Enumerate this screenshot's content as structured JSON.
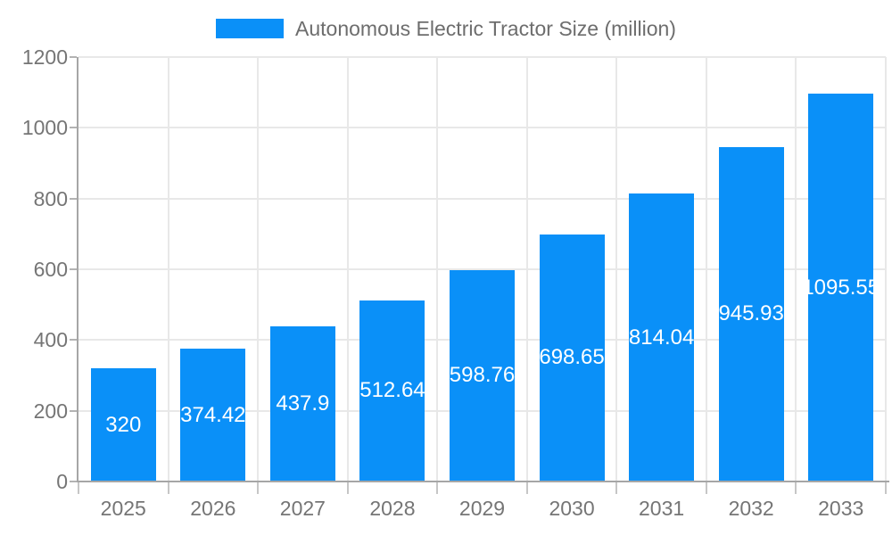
{
  "chart_data": {
    "type": "bar",
    "title": "Autonomous Electric Tractor Size (million)",
    "categories": [
      "2025",
      "2026",
      "2027",
      "2028",
      "2029",
      "2030",
      "2031",
      "2032",
      "2033"
    ],
    "series": [
      {
        "name": "Autonomous Electric Tractor Size (million)",
        "values": [
          320,
          374.42,
          437.9,
          512.64,
          598.76,
          698.65,
          814.04,
          945.93,
          1095.55
        ],
        "labels": [
          "320",
          "374.42",
          "437.9",
          "512.64",
          "598.76",
          "698.65",
          "814.04",
          "945.93",
          "1095.55"
        ]
      }
    ],
    "xlabel": "",
    "ylabel": "",
    "ylim": [
      0,
      1200
    ],
    "yticks": [
      0,
      200,
      400,
      600,
      800,
      1000,
      1200
    ],
    "grid": true,
    "legend_position": "top",
    "colors": {
      "bar": "#0a90f8",
      "bar_label_text": "#ffffff",
      "axis_line": "#a6a6a6",
      "gridline": "#e8e8e8",
      "tick_label": "#757575",
      "legend_text": "#6d6d6d",
      "background": "#ffffff"
    }
  }
}
